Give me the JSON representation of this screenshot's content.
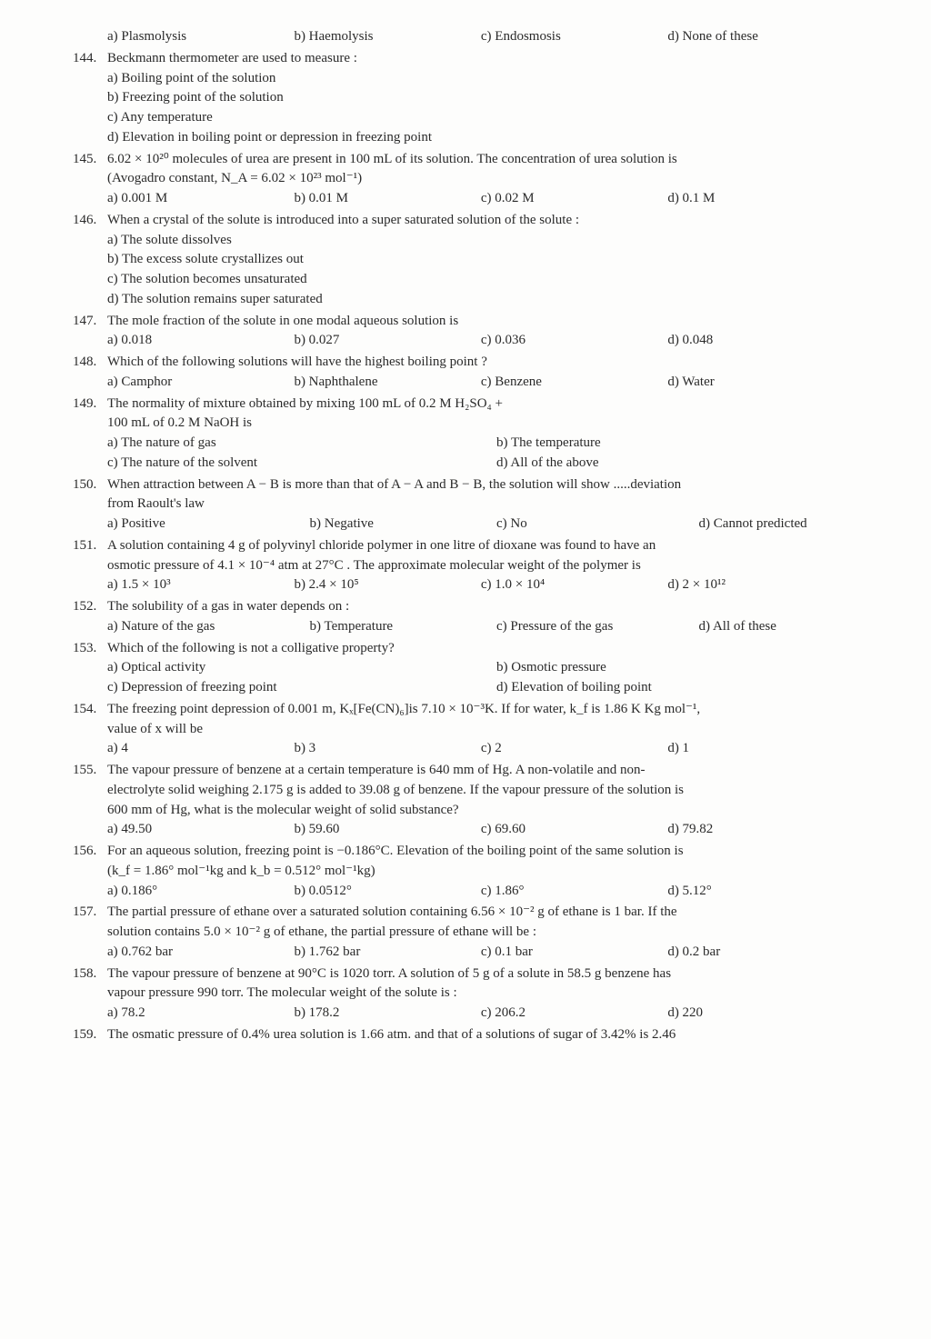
{
  "q143": {
    "a": "a) Plasmolysis",
    "b": "b) Haemolysis",
    "c": "c) Endosmosis",
    "d": "d) None of these"
  },
  "q144": {
    "num": "144.",
    "text": "Beckmann thermometer are used to measure :",
    "a": "a) Boiling point of the solution",
    "b": "b) Freezing point of the solution",
    "c": "c) Any temperature",
    "d": "d) Elevation in boiling point or depression in freezing point"
  },
  "q145": {
    "num": "145.",
    "text": "6.02 × 10²⁰ molecules of urea are present in 100 mL of its solution. The concentration of urea solution is",
    "text2": "(Avogadro constant, N_A = 6.02 × 10²³ mol⁻¹)",
    "a": "a) 0.001 M",
    "b": "b) 0.01 M",
    "c": "c) 0.02 M",
    "d": "d) 0.1 M"
  },
  "q146": {
    "num": "146.",
    "text": "When a crystal of the solute is introduced into a super saturated solution of the solute :",
    "a": "a) The solute dissolves",
    "b": "b) The excess solute crystallizes out",
    "c": "c) The solution becomes unsaturated",
    "d": "d) The solution remains super saturated"
  },
  "q147": {
    "num": "147.",
    "text": "The mole fraction of the solute in one modal aqueous solution is",
    "a": "a) 0.018",
    "b": "b) 0.027",
    "c": "c) 0.036",
    "d": "d) 0.048"
  },
  "q148": {
    "num": "148.",
    "text": "Which of the following solutions will have the highest boiling point ?",
    "a": "a) Camphor",
    "b": "b) Naphthalene",
    "c": "c) Benzene",
    "d": "d) Water"
  },
  "q149": {
    "num": "149.",
    "text": "The normality of mixture obtained by mixing 100 mL of 0.2 M H₂SO₄ +",
    "text2": "100 mL of 0.2 M NaOH is",
    "a": "a) The nature of gas",
    "b": "b) The temperature",
    "c": "c) The nature of the solvent",
    "d": "d) All of the above"
  },
  "q150": {
    "num": "150.",
    "text": "When attraction between A − B is more than that of A − A and B − B, the solution will show .....deviation",
    "text2": "from Raoult's law",
    "a": "a) Positive",
    "b": "b) Negative",
    "c": "c) No",
    "d": "d) Cannot predicted"
  },
  "q151": {
    "num": "151.",
    "text": "A solution containing 4 g of polyvinyl chloride polymer in one litre of dioxane was found to have an",
    "text2": "osmotic pressure of 4.1 × 10⁻⁴ atm at 27°C . The approximate molecular weight of the polymer is",
    "a": "a) 1.5 × 10³",
    "b": "b) 2.4 × 10⁵",
    "c": "c) 1.0 × 10⁴",
    "d": "d) 2 × 10¹²"
  },
  "q152": {
    "num": "152.",
    "text": "The solubility of a gas in water depends on :",
    "a": "a) Nature of the gas",
    "b": "b) Temperature",
    "c": "c) Pressure of the gas",
    "d": "d) All of these"
  },
  "q153": {
    "num": "153.",
    "text": "Which of the following is not a colligative property?",
    "a": "a) Optical activity",
    "b": "b) Osmotic pressure",
    "c": "c) Depression of freezing point",
    "d": "d) Elevation of boiling point"
  },
  "q154": {
    "num": "154.",
    "text": "The freezing point depression of 0.001 m, Kₓ[Fe(CN)₆]is 7.10 × 10⁻³K. If for water, k_f is 1.86 K Kg mol⁻¹,",
    "text2": "value of x will be",
    "a": "a) 4",
    "b": "b) 3",
    "c": "c) 2",
    "d": "d) 1"
  },
  "q155": {
    "num": "155.",
    "text": "The vapour pressure of benzene at a certain temperature is 640 mm of Hg. A non-volatile and non-",
    "text2": "electrolyte solid weighing 2.175 g is added to 39.08 g of benzene. If the vapour pressure of the solution is",
    "text3": "600 mm of Hg, what is the molecular weight of solid substance?",
    "a": "a) 49.50",
    "b": "b) 59.60",
    "c": "c) 69.60",
    "d": "d) 79.82"
  },
  "q156": {
    "num": "156.",
    "text": "For an aqueous solution, freezing point is −0.186°C. Elevation of the boiling point of the same solution is",
    "text2": "(k_f = 1.86° mol⁻¹kg and k_b = 0.512° mol⁻¹kg)",
    "a": "a) 0.186°",
    "b": "b) 0.0512°",
    "c": "c) 1.86°",
    "d": "d) 5.12°"
  },
  "q157": {
    "num": "157.",
    "text": "The partial pressure of ethane over a saturated solution containing 6.56 × 10⁻² g of ethane is 1 bar. If the",
    "text2": "solution contains 5.0 × 10⁻² g of ethane, the partial pressure of ethane will be :",
    "a": "a) 0.762 bar",
    "b": "b) 1.762 bar",
    "c": "c) 0.1 bar",
    "d": "d) 0.2 bar"
  },
  "q158": {
    "num": "158.",
    "text": "The vapour pressure of benzene at 90°C is 1020 torr. A solution of 5 g of a solute in 58.5 g benzene has",
    "text2": "vapour pressure 990 torr. The molecular weight of the solute is :",
    "a": "a) 78.2",
    "b": "b) 178.2",
    "c": "c) 206.2",
    "d": "d) 220"
  },
  "q159": {
    "num": "159.",
    "text": "The osmatic pressure of 0.4% urea solution is 1.66 atm. and that of a solutions of sugar of 3.42% is 2.46"
  }
}
